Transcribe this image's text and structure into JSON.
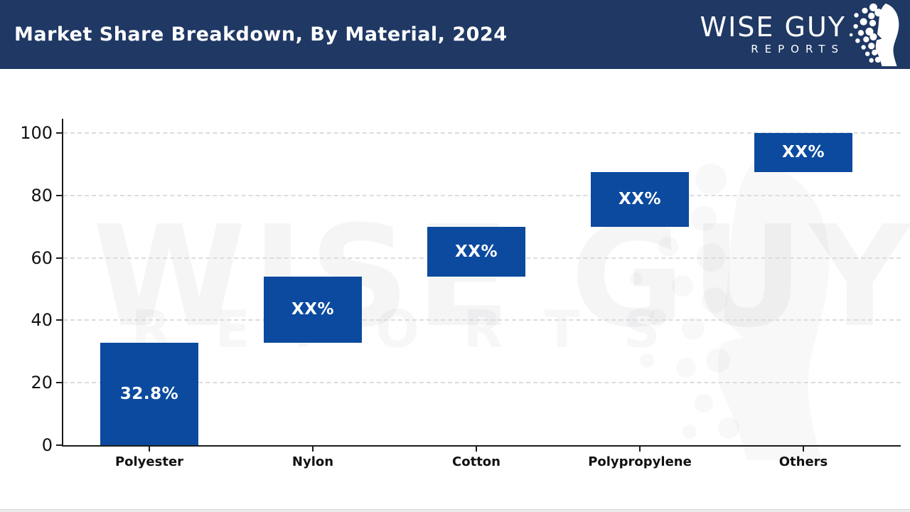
{
  "header": {
    "title": "Market Share Breakdown, By Material, 2024",
    "logo": {
      "line1": "WISE GUY",
      "line2": "REPORTS"
    }
  },
  "watermark": {
    "line1": "WISE GUY",
    "line2": "REPORTS"
  },
  "chart_data": {
    "type": "bar",
    "subtype": "waterfall",
    "title": "Market Share Breakdown, By Material, 2024",
    "categories": [
      "Polyester",
      "Nylon",
      "Cotton",
      "Polypropylene",
      "Others"
    ],
    "segments": [
      {
        "category": "Polyester",
        "start": 0,
        "end": 32.8,
        "label": "32.8%"
      },
      {
        "category": "Nylon",
        "start": 32.8,
        "end": 54,
        "label": "XX%"
      },
      {
        "category": "Cotton",
        "start": 54,
        "end": 70,
        "label": "XX%"
      },
      {
        "category": "Polypropylene",
        "start": 70,
        "end": 87.5,
        "label": "XX%"
      },
      {
        "category": "Others",
        "start": 87.5,
        "end": 100,
        "label": "XX%"
      }
    ],
    "xlabel": "",
    "ylabel": "",
    "y_ticks": [
      0,
      20,
      40,
      60,
      80,
      100
    ],
    "ylim": [
      0,
      105
    ],
    "grid": "horizontal-dashed",
    "legend": "none",
    "bar_color": "#0b4a9e",
    "bar_label_color": "#ffffff",
    "header_color": "#1f3864"
  }
}
